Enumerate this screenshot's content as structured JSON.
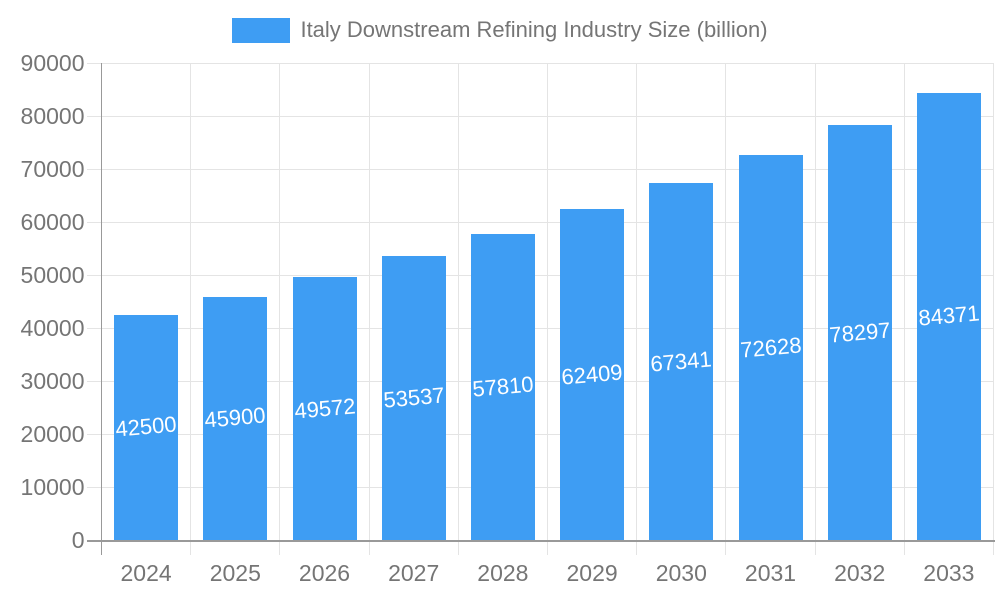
{
  "chart_data": {
    "type": "bar",
    "title": "Italy Downstream Refining Industry Size (billion)",
    "legend": {
      "label": "Italy Downstream Refining Industry Size (billion)",
      "position": "top-center"
    },
    "categories": [
      "2024",
      "2025",
      "2026",
      "2027",
      "2028",
      "2029",
      "2030",
      "2031",
      "2032",
      "2033"
    ],
    "values": [
      42500,
      45900,
      49572,
      53537,
      57810,
      62409,
      67341,
      72628,
      78297,
      84371
    ],
    "xlabel": "",
    "ylabel": "",
    "ylim": [
      0,
      90000
    ],
    "y_step": 10000,
    "grid": true,
    "value_labels": "inside-bar-centered-white",
    "colors": {
      "bar": "#3e9df3",
      "grid": "#e4e4e4",
      "axis": "#999999",
      "text": "#757575",
      "value_label": "#ffffff"
    }
  }
}
